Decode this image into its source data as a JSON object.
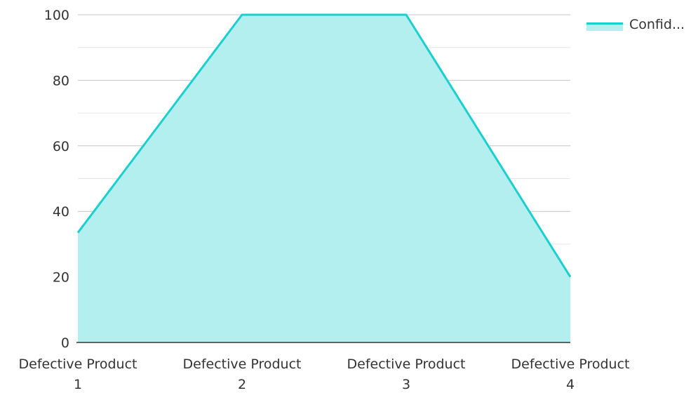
{
  "chart_data": {
    "type": "area",
    "categories": [
      [
        "Defective Product",
        "1"
      ],
      [
        "Defective Product",
        "2"
      ],
      [
        "Defective Product",
        "3"
      ],
      [
        "Defective Product",
        "4"
      ]
    ],
    "series": [
      {
        "name": "Confid...",
        "values": [
          33.5,
          100,
          100,
          20
        ],
        "line_color": "#1ccfcf",
        "fill_color": "#b2efee"
      }
    ],
    "ylim": [
      0,
      100
    ],
    "yticks": [
      "0",
      "20",
      "40",
      "60",
      "80",
      "100"
    ],
    "ytick_values": [
      0,
      20,
      40,
      60,
      80,
      100
    ],
    "grid": true,
    "legend_position": "top-right"
  }
}
